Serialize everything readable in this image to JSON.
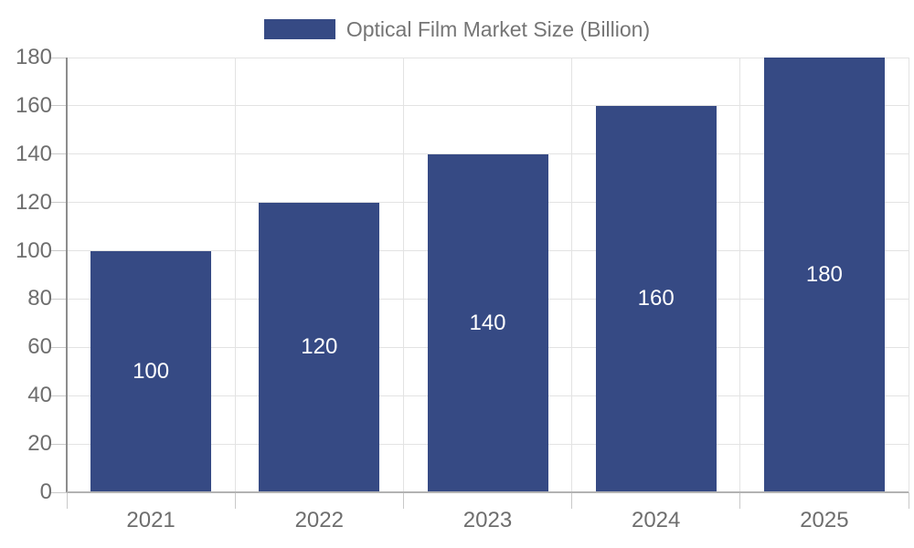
{
  "chart_data": {
    "type": "bar",
    "categories": [
      "2021",
      "2022",
      "2023",
      "2024",
      "2025"
    ],
    "values": [
      100,
      120,
      140,
      160,
      180
    ],
    "legend": {
      "position": "top",
      "label": "Optical Film Market Size (Billion)"
    },
    "xlabel": "",
    "ylabel": "",
    "ylim": [
      0,
      180
    ],
    "yticks": [
      0,
      20,
      40,
      60,
      80,
      100,
      120,
      140,
      160,
      180
    ],
    "grid": true,
    "show_value_labels": true,
    "value_label_position": "inside-middle"
  },
  "colors": {
    "bar": "#364A84",
    "legend_text": "#757575",
    "axis_text": "#6E6E6E",
    "value_label_text": "#FFFFFF",
    "gridline": "#E3E3E3",
    "tick": "#C9C9C9",
    "y_axis_line": "#8C8C8C",
    "x_axis_line": "#B3B3B3",
    "background": "#FFFFFF"
  }
}
